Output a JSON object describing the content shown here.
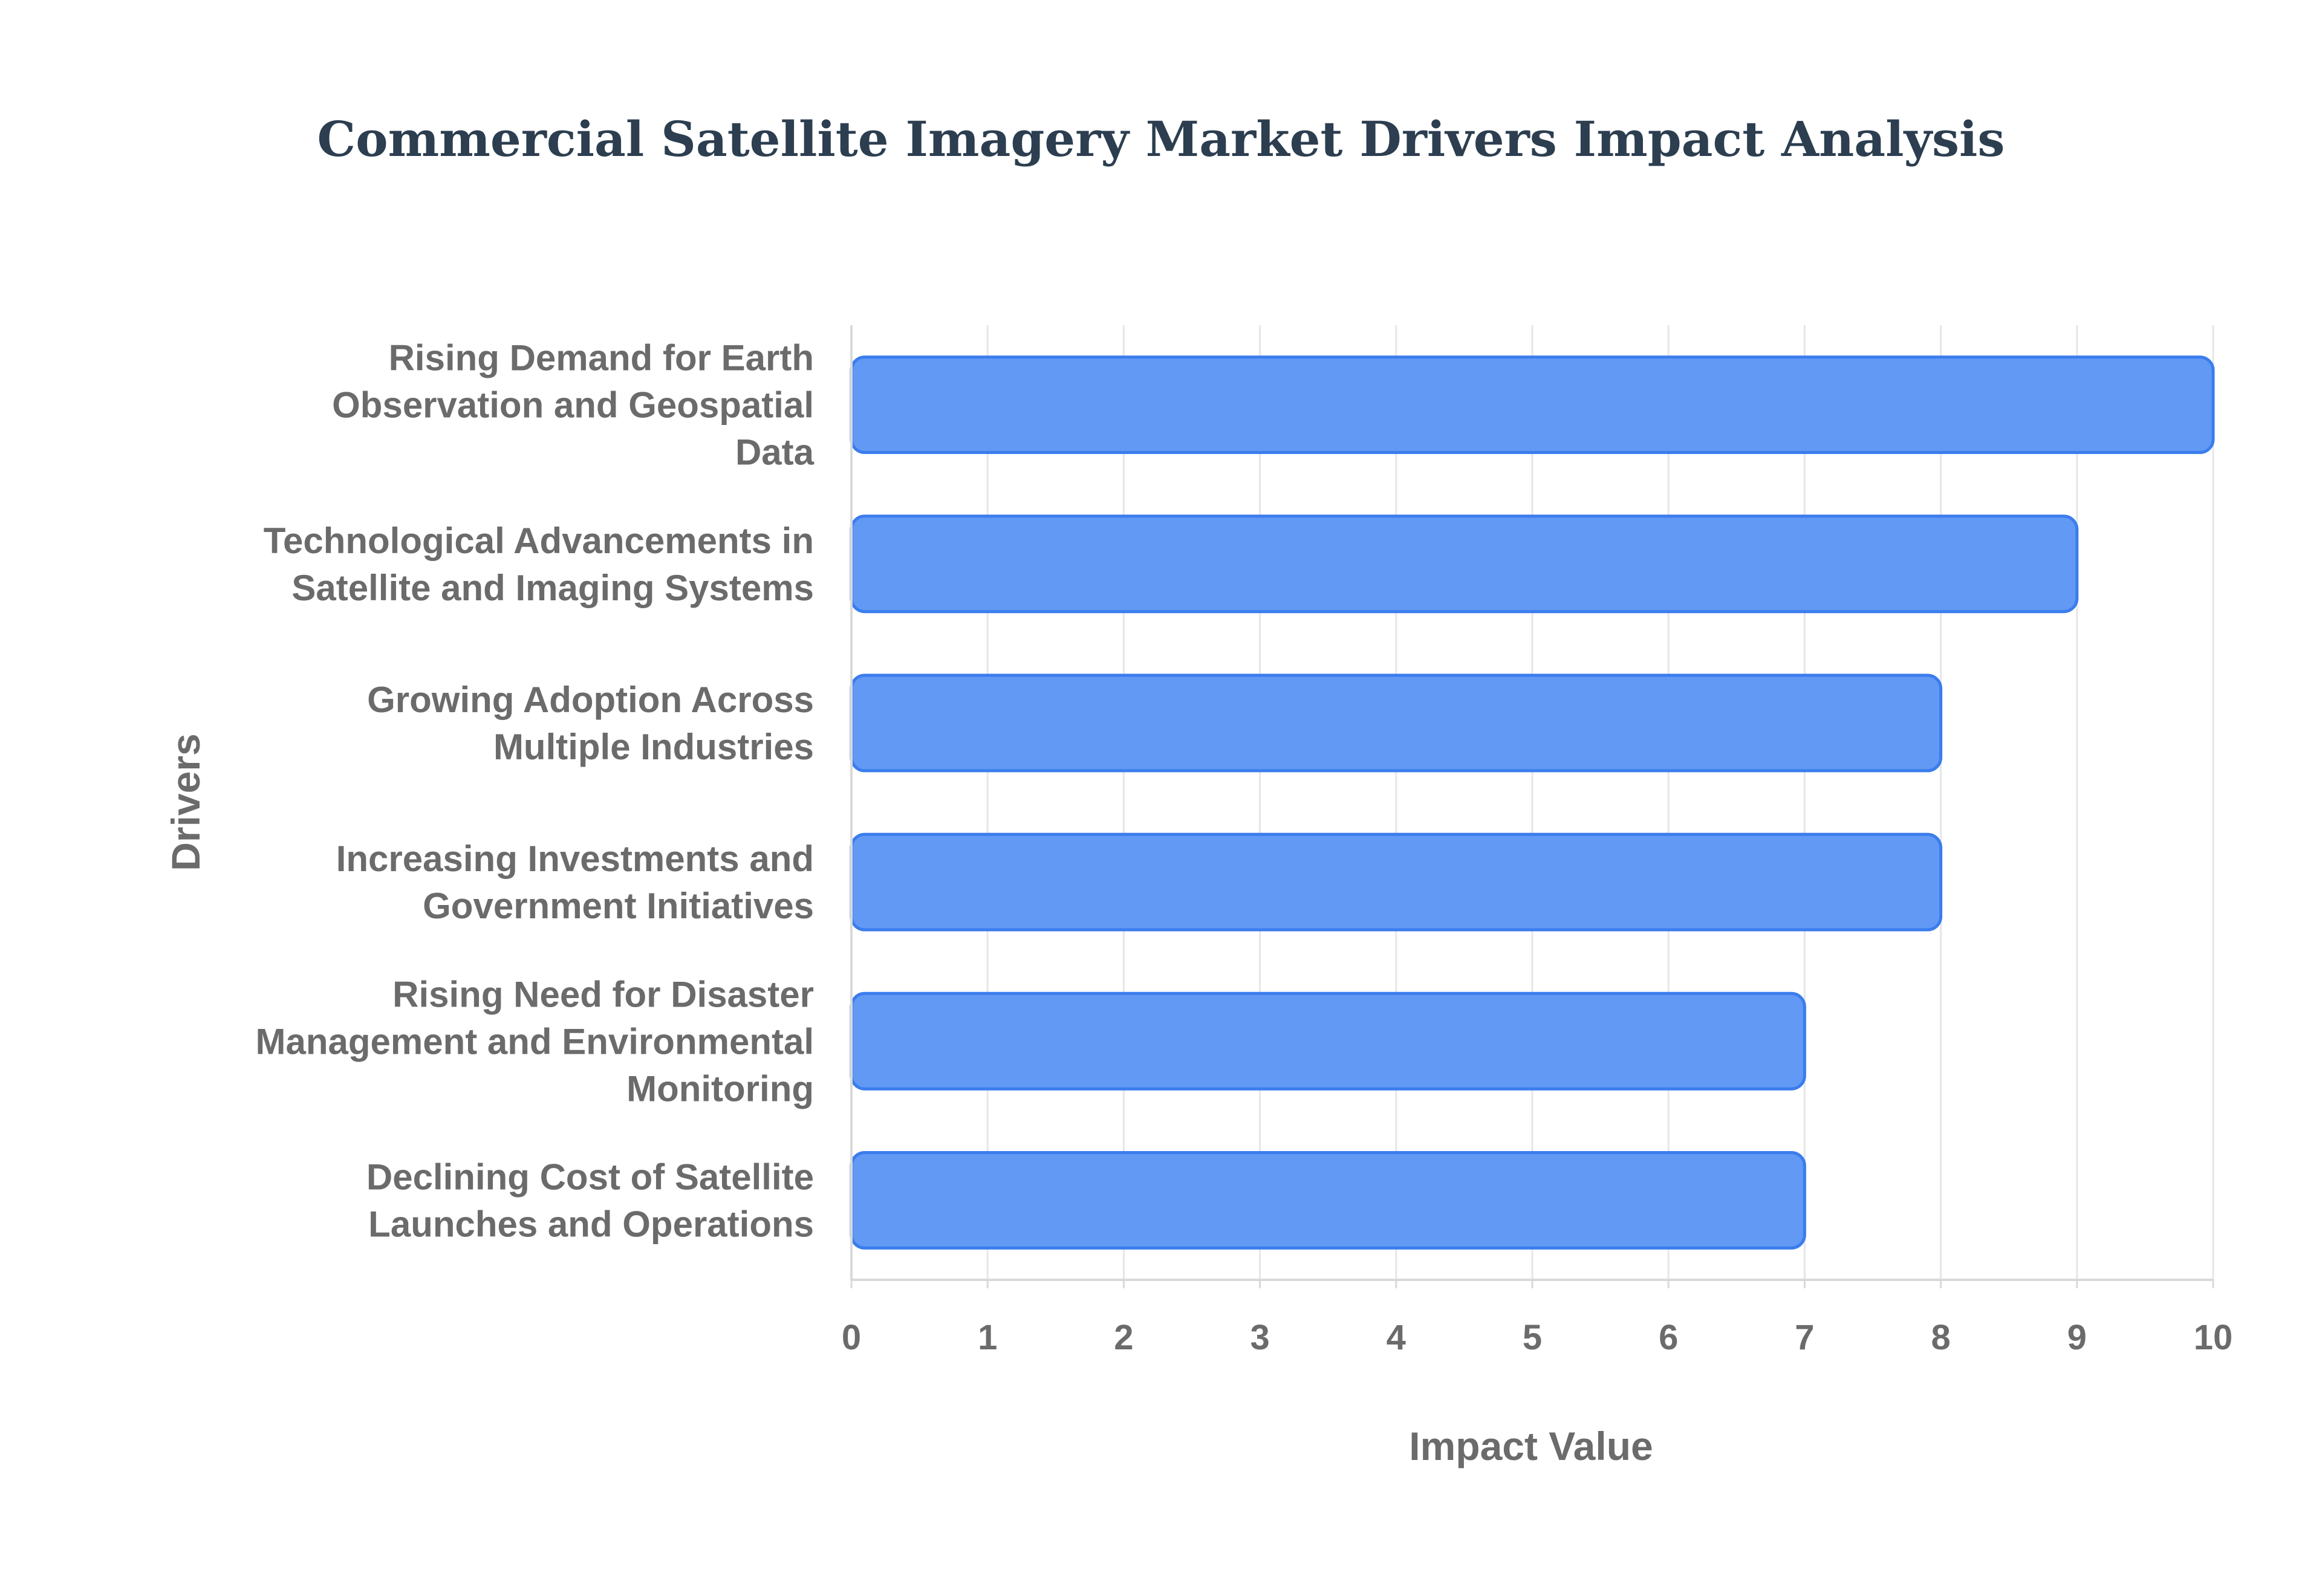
{
  "chart_data": {
    "type": "bar",
    "orientation": "horizontal",
    "title": "Commercial Satellite Imagery Market Drivers Impact Analysis",
    "xlabel": "Impact Value",
    "ylabel": "Drivers",
    "xlim": [
      0,
      10
    ],
    "xticks": [
      0,
      1,
      2,
      3,
      4,
      5,
      6,
      7,
      8,
      9,
      10
    ],
    "grid": true,
    "categories": [
      [
        "Rising Demand for Earth",
        "Observation and Geospatial",
        "Data"
      ],
      [
        "Technological Advancements in",
        "Satellite and Imaging Systems"
      ],
      [
        "Growing Adoption Across",
        "Multiple Industries"
      ],
      [
        "Increasing Investments and",
        "Government Initiatives"
      ],
      [
        "Rising Need for Disaster",
        "Management and Environmental",
        "Monitoring"
      ],
      [
        "Declining Cost of Satellite",
        "Launches and Operations"
      ]
    ],
    "values": [
      10,
      9,
      8,
      8,
      7,
      7
    ],
    "bar_color": "#6199f5",
    "bar_edge_color": "#3b7ded"
  }
}
